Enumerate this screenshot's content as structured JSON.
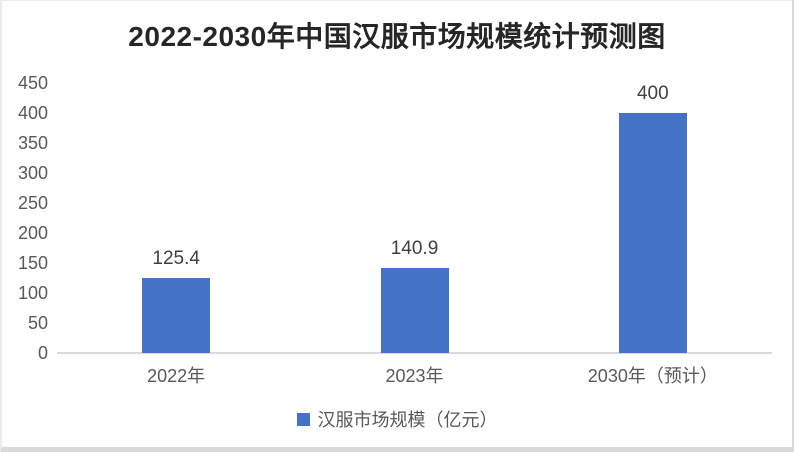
{
  "window": {
    "title": "2022-2030年中国汉服市场规模统计预测图"
  },
  "chart_data": {
    "type": "bar",
    "title": "2022-2030年中国汉服市场规模统计预测图",
    "categories": [
      "2022年",
      "2023年",
      "2030年（预计）"
    ],
    "series": [
      {
        "name": "汉服市场规模（亿元）",
        "values": [
          125.4,
          140.9,
          400
        ]
      }
    ],
    "data_labels": [
      "125.4",
      "140.9",
      "400"
    ],
    "xlabel": "",
    "ylabel": "",
    "ylim": [
      0,
      450
    ],
    "yticks": [
      0,
      50,
      100,
      150,
      200,
      250,
      300,
      350,
      400,
      450
    ],
    "grid": false,
    "legend_position": "bottom",
    "colors": {
      "bar": "#4472C4",
      "axis_line": "#D9D9D9",
      "tick_label": "#595959",
      "data_label": "#404040",
      "title": "#262626",
      "background": "#FFFFFF"
    }
  }
}
